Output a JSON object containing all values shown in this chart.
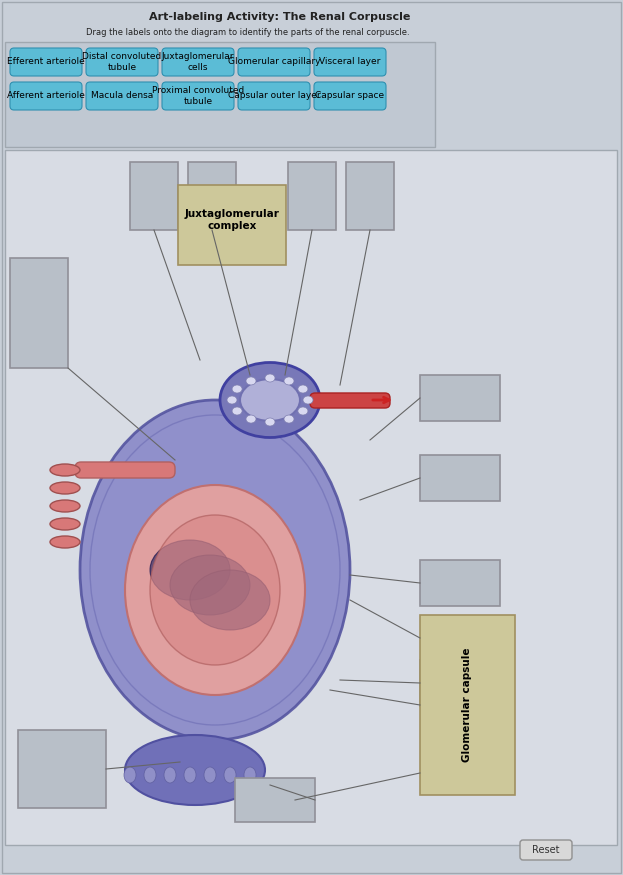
{
  "title": "Art-labeling Activity: The Renal Corpuscle",
  "subtitle": "Drag the labels onto the diagram to identify the parts of the renal corpuscle.",
  "bg_color": "#c8cfd8",
  "label_bg": "#5bbcd6",
  "label_font_size": 6.5,
  "top_labels": [
    "Efferent arteriole",
    "Distal convoluted\ntubule",
    "Juxtaglomerular\ncells",
    "Glomerular capillary",
    "Visceral layer",
    "Afferent arteriole",
    "Macula densa",
    "Proximal convoluted\ntubule",
    "Capsular outer layer",
    "Capsular space"
  ],
  "blank_box_color": "#b8bfc8",
  "blank_box_border": "#909098",
  "juxta_label": "Juxtaglomerular\ncomplex",
  "juxta_label_bg": "#cdc89a",
  "glom_capsule_label": "Glomerular capsule",
  "glom_capsule_bg": "#cdc89a",
  "reset_btn": "Reset",
  "inner_panel_bg": "#d8dce4"
}
